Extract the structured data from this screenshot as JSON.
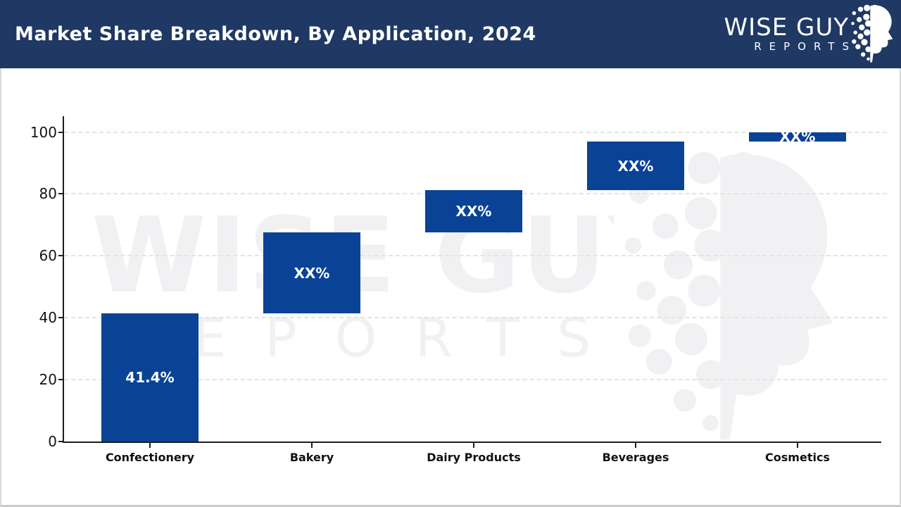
{
  "header": {
    "title": "Market Share Breakdown, By Application, 2024",
    "logo": {
      "line1": "WISE GUY",
      "line2": "REPORTS"
    }
  },
  "watermark": {
    "line1": "WISE GUY",
    "line2": "REPORTS"
  },
  "colors": {
    "header_bg": "#1f3864",
    "bar": "#0a4296",
    "bar_label": "#ffffff",
    "grid": "#e3e3e3",
    "axis": "#1c1c1c",
    "watermark": "#f1f1f3"
  },
  "chart_data": {
    "type": "bar",
    "subtype": "waterfall",
    "title": "Market Share Breakdown, By Application, 2024",
    "categories": [
      "Confectionery",
      "Bakery",
      "Dairy Products",
      "Beverages",
      "Cosmetics"
    ],
    "segments": [
      {
        "category": "Confectionery",
        "start": 0,
        "end": 41.4,
        "label": "41.4%"
      },
      {
        "category": "Bakery",
        "start": 41.4,
        "end": 67.5,
        "label": "XX%"
      },
      {
        "category": "Dairy Products",
        "start": 67.5,
        "end": 81.2,
        "label": "XX%"
      },
      {
        "category": "Beverages",
        "start": 81.2,
        "end": 96.9,
        "label": "XX%"
      },
      {
        "category": "Cosmetics",
        "start": 96.9,
        "end": 100,
        "label": "XX%"
      }
    ],
    "y_ticks": [
      0,
      20,
      40,
      60,
      80,
      100
    ],
    "ylim": [
      0,
      105
    ],
    "xlabel": "",
    "ylabel": "",
    "grid": "dashed-horizontal",
    "legend": "none"
  }
}
